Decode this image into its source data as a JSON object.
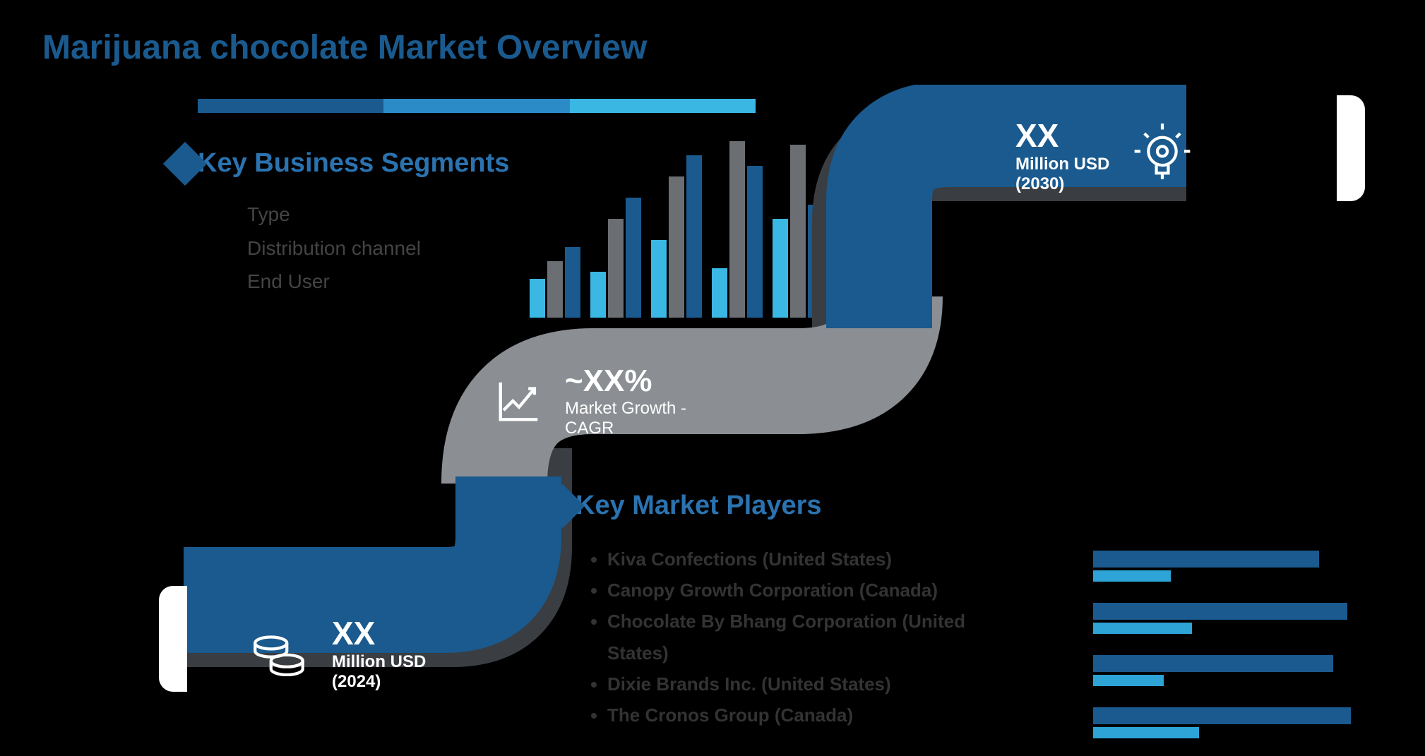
{
  "title": "Marijuana chocolate Market Overview",
  "colorbar": [
    "#1a5a8e",
    "#2b8bc6",
    "#3bb7e4"
  ],
  "segments": {
    "heading": "Key Business Segments",
    "items": [
      "Type",
      "Distribution channel",
      "End User"
    ]
  },
  "vchart": {
    "colors": {
      "a": "#3bb7e4",
      "b": "#6b6e72",
      "c": "#1a5a8e"
    },
    "groups": [
      {
        "a": 55,
        "b": 80,
        "c": 100
      },
      {
        "a": 65,
        "b": 140,
        "c": 170
      },
      {
        "a": 110,
        "b": 200,
        "c": 230
      },
      {
        "a": 70,
        "b": 250,
        "c": 215
      },
      {
        "a": 140,
        "b": 245,
        "c": 160
      }
    ]
  },
  "ribbon": {
    "band_primary": "#1a5a8e",
    "band_shadow": "#3a3d41",
    "band_grey": "#8b8f93",
    "end_2030": {
      "value": "XX",
      "unit": "Million USD",
      "year": "(2030)"
    },
    "cagr": {
      "value": "~XX%",
      "label1": "Market Growth -",
      "label2": "CAGR"
    },
    "start_2024": {
      "value": "XX",
      "unit": "Million USD",
      "year": "(2024)"
    }
  },
  "players": {
    "heading": "Key Market Players",
    "items": [
      "Kiva Confections (United States)",
      "Canopy Growth Corporation (Canada)",
      "Chocolate By Bhang Corporation (United States)",
      "Dixie Brands Inc. (United States)",
      "The Cronos Group (Canada)"
    ]
  },
  "hbars": {
    "wide_color": "#1a5a8e",
    "narrow_color": "#2ea3d6",
    "pairs": [
      {
        "wide": 320,
        "narrow": 110
      },
      {
        "wide": 360,
        "narrow": 140
      },
      {
        "wide": 340,
        "narrow": 100
      },
      {
        "wide": 365,
        "narrow": 150
      }
    ]
  }
}
